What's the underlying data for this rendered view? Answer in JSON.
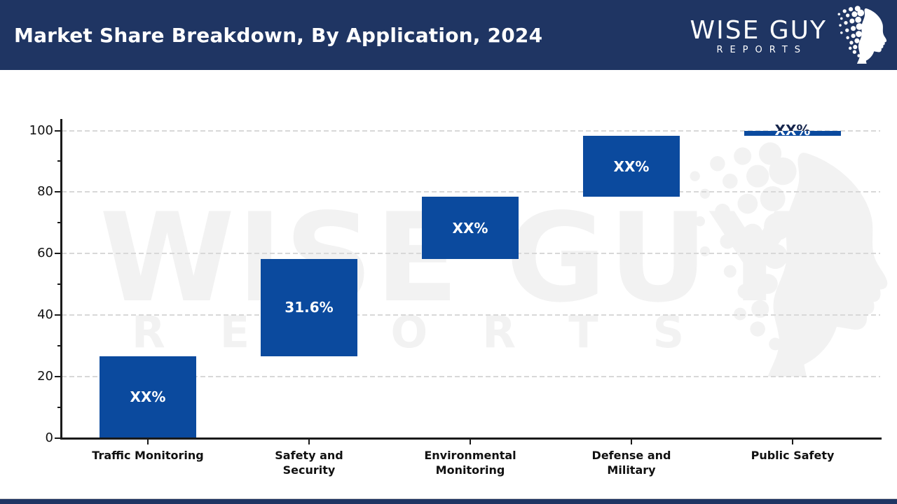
{
  "header": {
    "title": "Market Share Breakdown, By Application, 2024",
    "logo": {
      "line1": "WISE GUY",
      "line2": "REPORTS"
    }
  },
  "watermark": {
    "line1": "WISE GUY",
    "line2": "REPORTS"
  },
  "colors": {
    "header_bg": "#1f3563",
    "footer_bg": "#1f3563",
    "bar": "#0b4a9e",
    "bar_label_on_bar": "#ffffff",
    "bar_label_dark": "#16254c",
    "grid": "#d8d8d8",
    "axis": "#1a1a1a",
    "watermark": "#f2f2f2"
  },
  "chart_data": {
    "type": "bar",
    "subtype": "waterfall-floating-segments",
    "title": "Market Share Breakdown, By Application, 2024",
    "xlabel": "",
    "ylabel": "",
    "ylim": [
      0,
      100
    ],
    "yticks": [
      0,
      20,
      40,
      60,
      80,
      100
    ],
    "yticks_minor": [
      10,
      30,
      50,
      70,
      90
    ],
    "grid": "dashed-horizontal",
    "legend": "none",
    "categories": [
      "Traffic Monitoring",
      "Safety and Security",
      "Environmental Monitoring",
      "Defense and Military",
      "Public Safety"
    ],
    "segments": [
      {
        "category": "Traffic Monitoring",
        "category_lines": [
          "Traffic Monitoring"
        ],
        "start": 0,
        "end": 26.7,
        "value": 26.7,
        "label": "XX%"
      },
      {
        "category": "Safety and Security",
        "category_lines": [
          "Safety and",
          "Security"
        ],
        "start": 26.7,
        "end": 58.3,
        "value": 31.6,
        "label": "31.6%"
      },
      {
        "category": "Environmental Monitoring",
        "category_lines": [
          "Environmental",
          "Monitoring"
        ],
        "start": 58.3,
        "end": 78.4,
        "value": 20.1,
        "label": "XX%"
      },
      {
        "category": "Defense and Military",
        "category_lines": [
          "Defense and",
          "Military"
        ],
        "start": 78.4,
        "end": 98.2,
        "value": 19.8,
        "label": "XX%"
      },
      {
        "category": "Public Safety",
        "category_lines": [
          "Public Safety"
        ],
        "start": 98.2,
        "end": 100,
        "value": 1.8,
        "label": "XX%"
      }
    ]
  }
}
